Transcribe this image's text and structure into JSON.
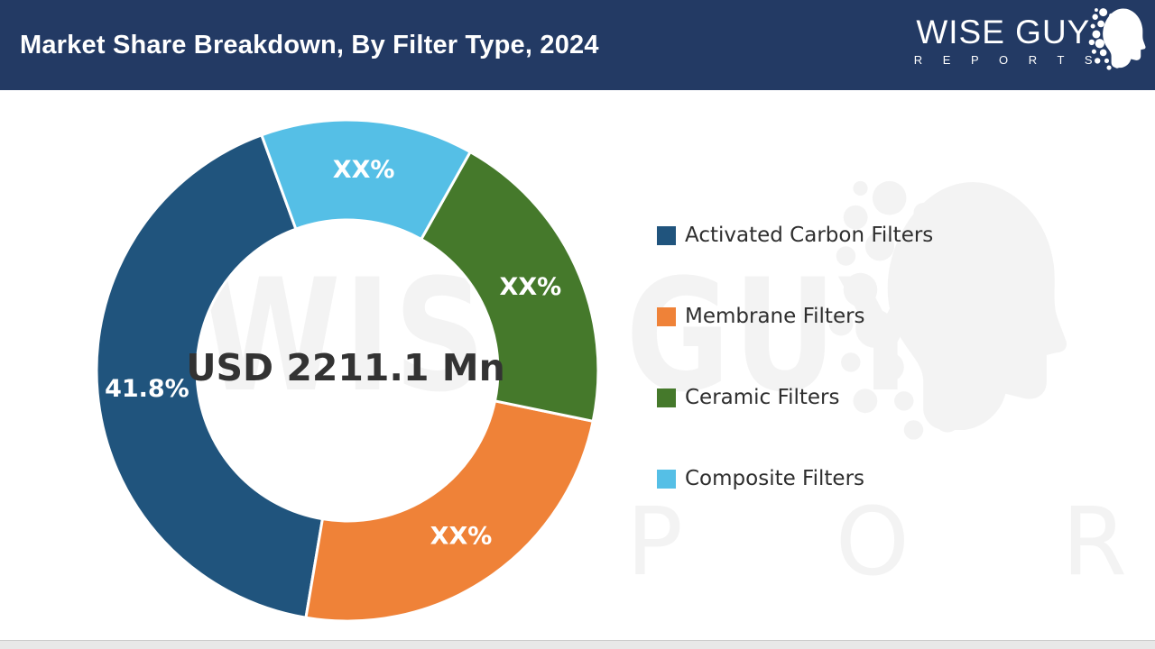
{
  "header": {
    "title": "Market Share Breakdown, By Filter Type, 2024",
    "bg_color": "#233A64",
    "logo": {
      "line1": "WISE GUY",
      "line2": "R E P O R T S"
    }
  },
  "watermark": {
    "line1": "WISE GUY",
    "line2": "R E P O R T S"
  },
  "chart_data": {
    "type": "pie",
    "donut": true,
    "title": "Market Share Breakdown, By Filter Type, 2024",
    "center_label": "USD 2211.1 Mn",
    "start_angle_deg": 110,
    "direction": "counterclockwise",
    "legend_position": "right",
    "grid": false,
    "segments": [
      {
        "label": "Activated Carbon Filters",
        "display_label": "41.8%",
        "value_pct": 41.8,
        "color": "#20547D"
      },
      {
        "label": "Membrane Filters",
        "display_label": "XX%",
        "value_pct": 24.4,
        "color": "#EF8238"
      },
      {
        "label": "Ceramic Filters",
        "display_label": "XX%",
        "value_pct": 20.1,
        "color": "#45792B"
      },
      {
        "label": "Composite Filters",
        "display_label": "XX%",
        "value_pct": 13.7,
        "color": "#55BFE6"
      }
    ]
  }
}
